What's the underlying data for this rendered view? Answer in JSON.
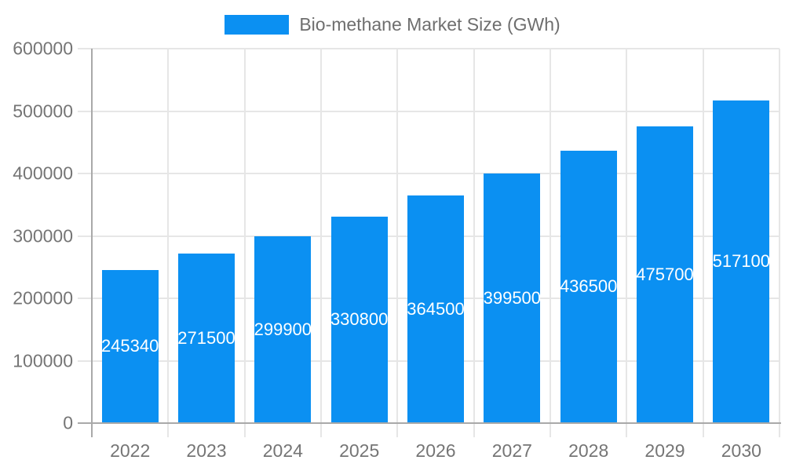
{
  "chart_data": {
    "type": "bar",
    "title": "Bio-methane Market Size (GWh)",
    "legend_position": "top",
    "categories": [
      "2022",
      "2023",
      "2024",
      "2025",
      "2026",
      "2027",
      "2028",
      "2029",
      "2030"
    ],
    "values": [
      245340,
      271500,
      299900,
      330800,
      364500,
      399500,
      436500,
      475700,
      517100
    ],
    "bar_labels": [
      "245340",
      "271500",
      "299900",
      "330800",
      "364500",
      "399500",
      "436500",
      "475700",
      "517100"
    ],
    "xlabel": "",
    "ylabel": "",
    "ylim": [
      0,
      600000
    ],
    "yticks": [
      "0",
      "100000",
      "200000",
      "300000",
      "400000",
      "500000",
      "600000"
    ],
    "grid": "on",
    "colors": {
      "bar": "#0b90f2",
      "bar_label": "#ffffff",
      "grid": "#e6e6e6",
      "axis": "#a9a9a9",
      "tick_label": "#757575",
      "legend_text": "#6e6e6e",
      "background": "#ffffff"
    }
  }
}
